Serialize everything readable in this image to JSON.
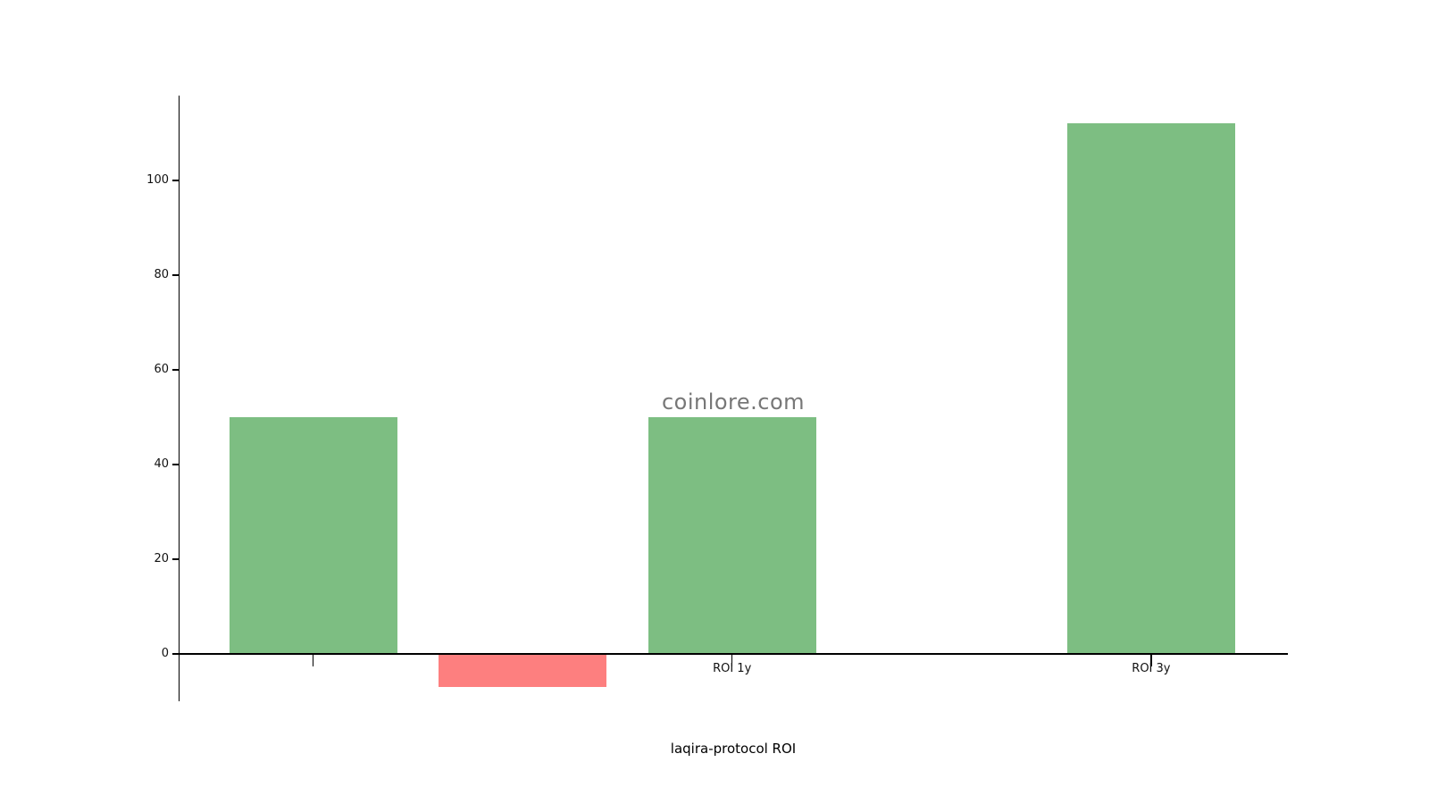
{
  "watermark": {
    "text": "coinlore.com",
    "color": "#777777"
  },
  "title": {
    "text": "laqira-protocol ROI",
    "color": "#000000"
  },
  "chart_data": {
    "type": "bar",
    "title": "laqira-protocol ROI",
    "watermark": "coinlore.com",
    "categories": [
      "",
      "",
      "ROI 1y",
      "",
      "ROI 3y"
    ],
    "values": [
      50,
      -7,
      50,
      null,
      112
    ],
    "x_tick_present": [
      true,
      true,
      true,
      false,
      true
    ],
    "y_ticks": [
      0,
      20,
      40,
      60,
      80,
      100
    ],
    "ylim": [
      -10,
      118
    ],
    "xlabel": "",
    "ylabel": "",
    "grid": false,
    "legend_position": "none",
    "positive_color": "#7dbe82",
    "negative_color": "#fd7f7f",
    "bar_colors": [
      "#7dbe82",
      "#fd7f7f",
      "#7dbe82",
      null,
      "#7dbe82"
    ],
    "axis_color": "#000000",
    "tick_label_color": "#111111"
  }
}
